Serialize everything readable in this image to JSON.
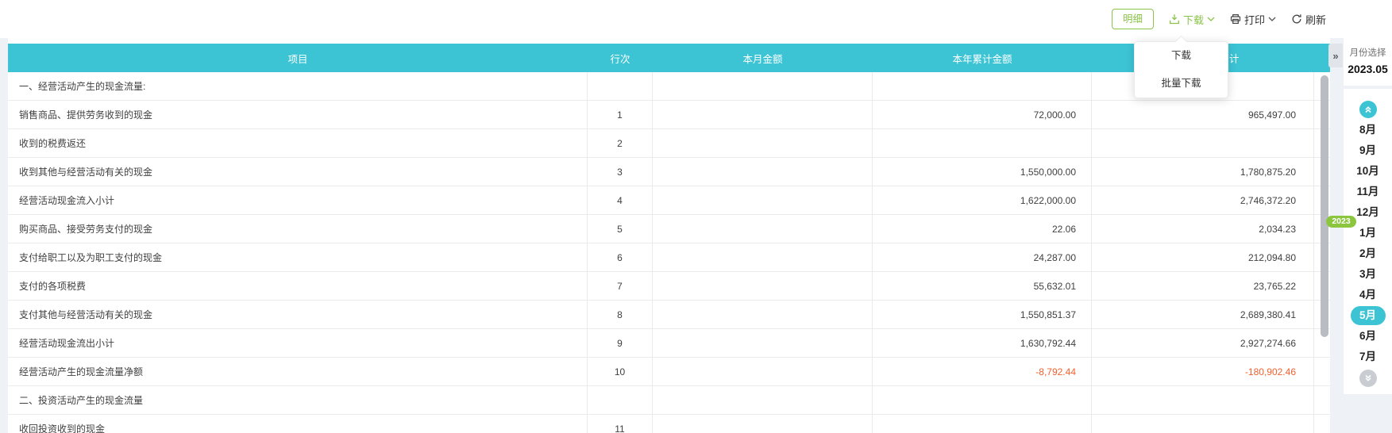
{
  "toolbar": {
    "detail": "明细",
    "download": "下载",
    "print": "打印",
    "refresh": "刷新"
  },
  "download_menu": [
    "下载",
    "批量下载"
  ],
  "table": {
    "headers": {
      "item": "项目",
      "line_no": "行次",
      "month_amount": "本月金额",
      "ytd_amount": "本年累计金额",
      "prev_visible": "计"
    },
    "rows": [
      {
        "item": "一、经营活动产生的现金流量:",
        "line": "",
        "month": "",
        "ytd": "",
        "prev": ""
      },
      {
        "item": "销售商品、提供劳务收到的现金",
        "line": "1",
        "month": "",
        "ytd": "72,000.00",
        "prev": "965,497.00"
      },
      {
        "item": "收到的税费返还",
        "line": "2",
        "month": "",
        "ytd": "",
        "prev": ""
      },
      {
        "item": "收到其他与经营活动有关的现金",
        "line": "3",
        "month": "",
        "ytd": "1,550,000.00",
        "prev": "1,780,875.20"
      },
      {
        "item": "经营活动现金流入小计",
        "line": "4",
        "month": "",
        "ytd": "1,622,000.00",
        "prev": "2,746,372.20"
      },
      {
        "item": "购买商品、接受劳务支付的现金",
        "line": "5",
        "month": "",
        "ytd": "22.06",
        "prev": "2,034.23"
      },
      {
        "item": "支付给职工以及为职工支付的现金",
        "line": "6",
        "month": "",
        "ytd": "24,287.00",
        "prev": "212,094.80"
      },
      {
        "item": "支付的各项税费",
        "line": "7",
        "month": "",
        "ytd": "55,632.01",
        "prev": "23,765.22"
      },
      {
        "item": "支付其他与经营活动有关的现金",
        "line": "8",
        "month": "",
        "ytd": "1,550,851.37",
        "prev": "2,689,380.41"
      },
      {
        "item": "经营活动现金流出小计",
        "line": "9",
        "month": "",
        "ytd": "1,630,792.44",
        "prev": "2,927,274.66"
      },
      {
        "item": "经营活动产生的现金流量净额",
        "line": "10",
        "month": "",
        "ytd": "-8,792.44",
        "prev": "-180,902.46",
        "neg": true
      },
      {
        "item": "二、投资活动产生的现金流量",
        "line": "",
        "month": "",
        "ytd": "",
        "prev": ""
      },
      {
        "item": "收回投资收到的现金",
        "line": "11",
        "month": "",
        "ytd": "",
        "prev": ""
      }
    ]
  },
  "collapse_glyph": "»",
  "sidebar": {
    "title": "月份选择",
    "period": "2023.05",
    "year_badge": "2023",
    "months": [
      "8月",
      "9月",
      "10月",
      "11月",
      "12月",
      "1月",
      "2月",
      "3月",
      "4月",
      "5月",
      "6月",
      "7月"
    ],
    "selected_month": "5月"
  },
  "colors": {
    "accent_teal": "#3cc4d5",
    "accent_green": "#8bc34a",
    "negative_amount": "#f2602e"
  }
}
